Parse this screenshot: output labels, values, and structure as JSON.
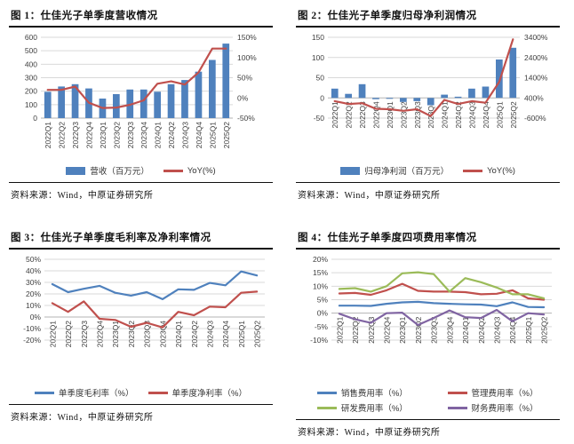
{
  "figures": [
    {
      "title": "图 1：仕佳光子单季度营收情况",
      "source": "资料来源：Wind，中原证券研究所"
    },
    {
      "title": "图 2：仕佳光子单季度归母净利润情况",
      "source": "资料来源：Wind，中原证券研究所"
    },
    {
      "title": "图 3：仕佳光子单季度毛利率及净利率情况",
      "source": "资料来源：Wind，中原证券研究所"
    },
    {
      "title": "图 4：仕佳光子单季度四项费用率情况",
      "source": "资料来源：Wind，中原证券研究所"
    }
  ],
  "chart_data": [
    {
      "type": "bar",
      "title": "图 1：仕佳光子单季度营收情况",
      "categories": [
        "2022Q1",
        "2022Q2",
        "2022Q3",
        "2022Q4",
        "2023Q1",
        "2023Q2",
        "2023Q3",
        "2023Q4",
        "2024Q1",
        "2024Q2",
        "2024Q3",
        "2024Q4",
        "2025Q1",
        "2025Q2"
      ],
      "series": [
        {
          "name": "营收（百万元）",
          "type": "bar",
          "axis": "left",
          "color": "#4f81bd",
          "values": [
            195,
            235,
            252,
            220,
            145,
            178,
            212,
            212,
            196,
            252,
            283,
            345,
            432,
            553
          ]
        },
        {
          "name": "YoY(%)",
          "type": "line",
          "axis": "right",
          "color": "#c0504d",
          "values": [
            20,
            20,
            28,
            -12,
            -25,
            -24,
            -17,
            -6,
            35,
            41,
            33,
            63,
            122,
            122
          ]
        }
      ],
      "left_axis": {
        "min": 0,
        "max": 600,
        "ticks": [
          0,
          100,
          200,
          300,
          400,
          500,
          600
        ],
        "suffix": ""
      },
      "right_axis": {
        "min": -50,
        "max": 150,
        "ticks": [
          -50,
          0,
          50,
          100,
          150
        ],
        "suffix": "%"
      },
      "grid": "on",
      "legend_position": "bottom"
    },
    {
      "type": "bar",
      "title": "图 2：仕佳光子单季度归母净利润情况",
      "categories": [
        "2022Q1",
        "2022Q2",
        "2022Q3",
        "2022Q4",
        "2023Q1",
        "2023Q2",
        "2023Q3",
        "2023Q4",
        "2024Q1",
        "2024Q2",
        "2024Q3",
        "2024Q4",
        "2025Q1",
        "2025Q2"
      ],
      "series": [
        {
          "name": "归母净利润（百万元）",
          "type": "bar",
          "axis": "left",
          "color": "#4f81bd",
          "values": [
            23,
            10,
            34,
            -3,
            -2,
            -10,
            -8,
            -18,
            8,
            3,
            23,
            28,
            95,
            124
          ]
        },
        {
          "name": "YoY(%)",
          "type": "line",
          "axis": "right",
          "color": "#c0504d",
          "values": [
            240,
            100,
            140,
            -140,
            -160,
            -240,
            -160,
            -500,
            300,
            100,
            240,
            160,
            1200,
            3300
          ]
        }
      ],
      "left_axis": {
        "min": -50,
        "max": 150,
        "ticks": [
          -50,
          0,
          50,
          100,
          150
        ],
        "suffix": ""
      },
      "right_axis": {
        "min": -600,
        "max": 3400,
        "ticks": [
          -600,
          400,
          1400,
          2400,
          3400
        ],
        "suffix": "%"
      },
      "grid": "on",
      "legend_position": "bottom"
    },
    {
      "type": "line",
      "title": "图 3：仕佳光子单季度毛利率及净利率情况",
      "categories": [
        "2022Q1",
        "2022Q2",
        "2022Q3",
        "2022Q4",
        "2023Q1",
        "2023Q2",
        "2023Q3",
        "2023Q4",
        "2024Q1",
        "2024Q2",
        "2024Q3",
        "2024Q4",
        "2025Q1",
        "2025Q2"
      ],
      "series": [
        {
          "name": "单季度毛利率（%）",
          "type": "line",
          "axis": "left",
          "color": "#4f81bd",
          "values": [
            28.5,
            21.5,
            24.5,
            27,
            21,
            18.5,
            21.5,
            15.5,
            24,
            23.5,
            29.5,
            27.5,
            39.5,
            36
          ]
        },
        {
          "name": "单季度净利率（%）",
          "type": "line",
          "axis": "left",
          "color": "#c0504d",
          "values": [
            12,
            4.5,
            13.5,
            -1.5,
            -2.5,
            -8.5,
            -5,
            -9,
            4.5,
            1.5,
            9,
            8.5,
            21,
            22
          ]
        }
      ],
      "left_axis": {
        "min": -20,
        "max": 50,
        "ticks": [
          -20,
          -10,
          0,
          10,
          20,
          30,
          40,
          50
        ],
        "suffix": "%"
      },
      "grid": "on",
      "legend_position": "bottom"
    },
    {
      "type": "line",
      "title": "图 4：仕佳光子单季度四项费用率情况",
      "categories": [
        "2022Q1",
        "2022Q2",
        "2022Q3",
        "2022Q4",
        "2023Q1",
        "2023Q2",
        "2023Q3",
        "2023Q4",
        "2024Q1",
        "2024Q2",
        "2024Q3",
        "2024Q4",
        "2025Q1",
        "2025Q2"
      ],
      "series": [
        {
          "name": "销售费用率（%）",
          "type": "line",
          "axis": "left",
          "color": "#4f81bd",
          "values": [
            2.8,
            2.8,
            2.7,
            3.5,
            4.0,
            4.2,
            3.7,
            3.5,
            3.3,
            3.2,
            2.6,
            4.0,
            2.3,
            2.2
          ]
        },
        {
          "name": "管理费用率（%）",
          "type": "line",
          "axis": "left",
          "color": "#c0504d",
          "values": [
            7.3,
            7.5,
            6.8,
            8.5,
            10.9,
            8.3,
            8.0,
            8.0,
            7.8,
            7.0,
            7.2,
            8.5,
            5.5,
            5.0
          ]
        },
        {
          "name": "研发费用率（%）",
          "type": "line",
          "axis": "left",
          "color": "#9bbb59",
          "values": [
            9.0,
            9.3,
            8.0,
            10.0,
            14.8,
            15.2,
            14.5,
            8.0,
            13.0,
            11.5,
            9.5,
            7.0,
            7.0,
            5.5
          ]
        },
        {
          "name": "财务费用率（%）",
          "type": "line",
          "axis": "left",
          "color": "#8064a2",
          "values": [
            -0.2,
            -2.3,
            -3.6,
            0.0,
            0.2,
            -4.4,
            -1.8,
            1.0,
            -1.5,
            -1.8,
            1.2,
            -3.0,
            0.0,
            -0.5
          ]
        }
      ],
      "left_axis": {
        "min": -10,
        "max": 20,
        "ticks": [
          -10,
          -5,
          0,
          5,
          10,
          15,
          20
        ],
        "suffix": "%"
      },
      "grid": "on",
      "legend_position": "bottom"
    }
  ]
}
